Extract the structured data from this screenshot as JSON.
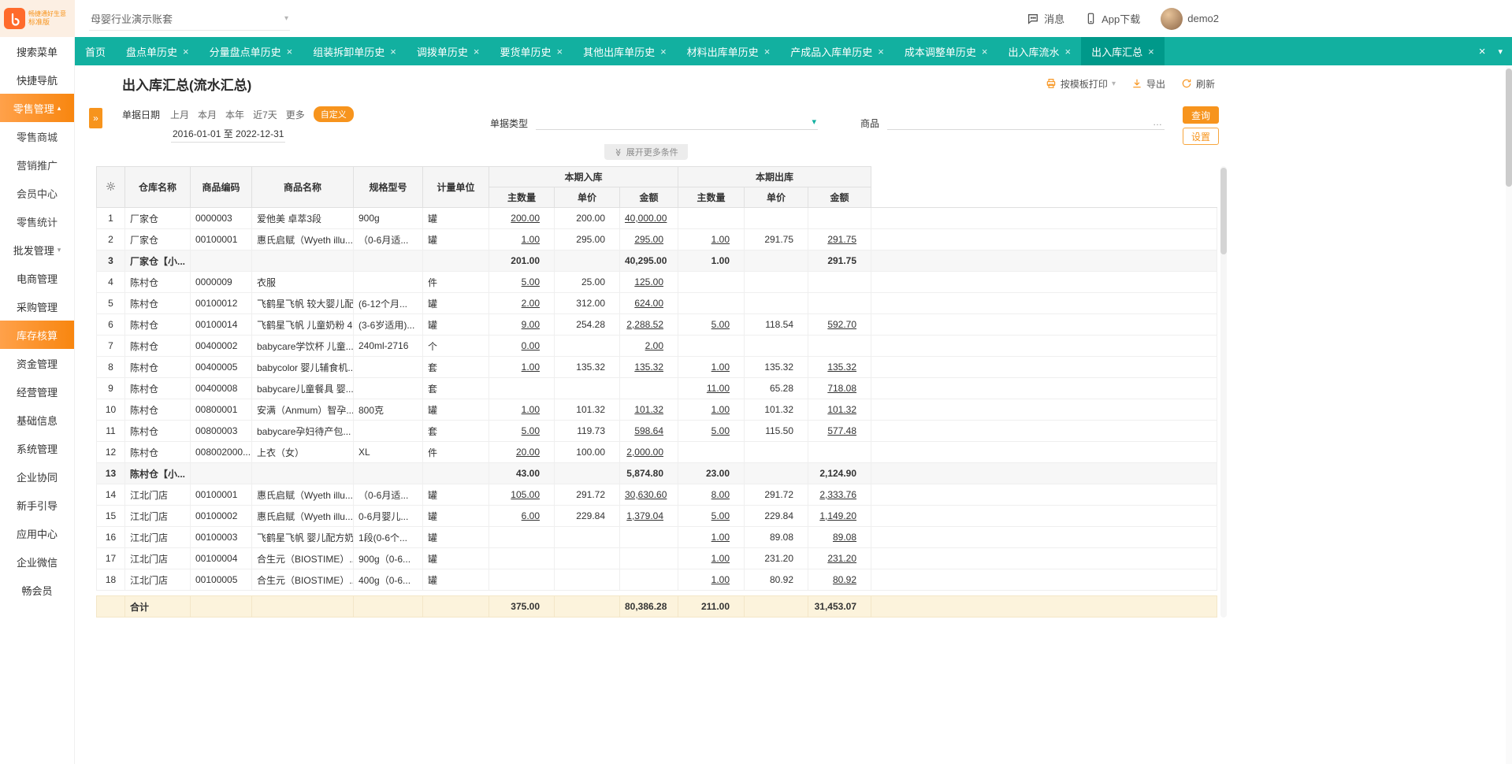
{
  "colors": {
    "teal": "#12b0a0",
    "teal_active_tab": "#00998a",
    "orange": "#f7941d",
    "logo_orange": "#ff6a2b",
    "total_row_bg": "#fcf3dc"
  },
  "icons": {
    "close": "×",
    "caret_down": "▾",
    "caret_up": "▴",
    "expand": "»",
    "double_chevron": "≫",
    "ellipsis": "…"
  },
  "topbar": {
    "logo_title": "畅捷通好生意",
    "logo_subtitle": "标准版",
    "account": "母婴行业演示账套",
    "messages_label": "消息",
    "app_download_label": "App下载",
    "username": "demo2"
  },
  "sidebar": {
    "items": [
      {
        "label": "搜索菜单",
        "type": "plain"
      },
      {
        "label": "快捷导航",
        "type": "plain"
      },
      {
        "label": "零售管理",
        "type": "group-open"
      },
      {
        "label": "零售商城",
        "type": "child"
      },
      {
        "label": "营销推广",
        "type": "child"
      },
      {
        "label": "会员中心",
        "type": "child"
      },
      {
        "label": "零售统计",
        "type": "child"
      },
      {
        "label": "批发管理",
        "type": "group-closed"
      },
      {
        "label": "电商管理",
        "type": "plain"
      },
      {
        "label": "采购管理",
        "type": "plain"
      },
      {
        "label": "库存核算",
        "type": "active"
      },
      {
        "label": "资金管理",
        "type": "plain"
      },
      {
        "label": "经营管理",
        "type": "plain"
      },
      {
        "label": "基础信息",
        "type": "plain"
      },
      {
        "label": "系统管理",
        "type": "plain"
      },
      {
        "label": "企业协同",
        "type": "plain"
      },
      {
        "label": "新手引导",
        "type": "plain"
      },
      {
        "label": "应用中心",
        "type": "plain"
      },
      {
        "label": "企业微信",
        "type": "plain"
      },
      {
        "label": "畅会员",
        "type": "plain"
      }
    ]
  },
  "tabs": [
    {
      "label": "首页",
      "closable": false,
      "active": false
    },
    {
      "label": "盘点单历史",
      "closable": true,
      "active": false
    },
    {
      "label": "分量盘点单历史",
      "closable": true,
      "active": false
    },
    {
      "label": "组装拆卸单历史",
      "closable": true,
      "active": false
    },
    {
      "label": "调拨单历史",
      "closable": true,
      "active": false
    },
    {
      "label": "要货单历史",
      "closable": true,
      "active": false
    },
    {
      "label": "其他出库单历史",
      "closable": true,
      "active": false
    },
    {
      "label": "材料出库单历史",
      "closable": true,
      "active": false
    },
    {
      "label": "产成品入库单历史",
      "closable": true,
      "active": false
    },
    {
      "label": "成本调整单历史",
      "closable": true,
      "active": false
    },
    {
      "label": "出入库流水",
      "closable": true,
      "active": false
    },
    {
      "label": "出入库汇总",
      "closable": true,
      "active": true
    }
  ],
  "page": {
    "title": "出入库汇总(流水汇总)",
    "actions": {
      "print": "按模板打印",
      "export": "导出",
      "refresh": "刷新"
    }
  },
  "filters": {
    "date_label": "单据日期",
    "date_quick": [
      "上月",
      "本月",
      "本年",
      "近7天",
      "更多"
    ],
    "custom_badge": "自定义",
    "date_range": "2016-01-01 至 2022-12-31",
    "doc_type_label": "单据类型",
    "product_label": "商品",
    "search_button": "查询",
    "settings_button": "设置",
    "expand_more": "展开更多条件"
  },
  "table": {
    "headers": {
      "warehouse": "仓库名称",
      "code": "商品编码",
      "name": "商品名称",
      "spec": "规格型号",
      "unit": "计量单位",
      "in_group": "本期入库",
      "out_group": "本期出库",
      "qty": "主数量",
      "price": "单价",
      "amount": "金额"
    },
    "rows": [
      {
        "type": "data",
        "idx": "1",
        "warehouse": "厂家仓",
        "code": "0000003",
        "name": "爱他美 卓萃3段",
        "spec": "900g",
        "unit": "罐",
        "in_qty": "200.00",
        "in_price": "200.00",
        "in_amount": "40,000.00",
        "out_qty": "",
        "out_price": "",
        "out_amount": ""
      },
      {
        "type": "data",
        "idx": "2",
        "warehouse": "厂家仓",
        "code": "00100001",
        "name": "惠氏启赋（Wyeth illu...",
        "spec": "（0-6月适...",
        "unit": "罐",
        "in_qty": "1.00",
        "in_price": "295.00",
        "in_amount": "295.00",
        "out_qty": "1.00",
        "out_price": "291.75",
        "out_amount": "291.75"
      },
      {
        "type": "subtotal",
        "idx": "3",
        "warehouse": "厂家仓【小...",
        "code": "",
        "name": "",
        "spec": "",
        "unit": "",
        "in_qty": "201.00",
        "in_price": "",
        "in_amount": "40,295.00",
        "out_qty": "1.00",
        "out_price": "",
        "out_amount": "291.75"
      },
      {
        "type": "data",
        "idx": "4",
        "warehouse": "陈村仓",
        "code": "0000009",
        "name": "衣服",
        "spec": "",
        "unit": "件",
        "in_qty": "5.00",
        "in_price": "25.00",
        "in_amount": "125.00",
        "out_qty": "",
        "out_price": "",
        "out_amount": ""
      },
      {
        "type": "data",
        "idx": "5",
        "warehouse": "陈村仓",
        "code": "00100012",
        "name": "飞鹤星飞帆 较大婴儿配...",
        "spec": "(6-12个月...",
        "unit": "罐",
        "in_qty": "2.00",
        "in_price": "312.00",
        "in_amount": "624.00",
        "out_qty": "",
        "out_price": "",
        "out_amount": ""
      },
      {
        "type": "data",
        "idx": "6",
        "warehouse": "陈村仓",
        "code": "00100014",
        "name": "飞鹤星飞帆 儿童奶粉 4...",
        "spec": "(3-6岁适用)...",
        "unit": "罐",
        "in_qty": "9.00",
        "in_price": "254.28",
        "in_amount": "2,288.52",
        "out_qty": "5.00",
        "out_price": "118.54",
        "out_amount": "592.70"
      },
      {
        "type": "data",
        "idx": "7",
        "warehouse": "陈村仓",
        "code": "00400002",
        "name": "babycare学饮杯 儿童...",
        "spec": "240ml-2716",
        "unit": "个",
        "in_qty": "0.00",
        "in_price": "",
        "in_amount": "2.00",
        "out_qty": "",
        "out_price": "",
        "out_amount": ""
      },
      {
        "type": "data",
        "idx": "8",
        "warehouse": "陈村仓",
        "code": "00400005",
        "name": "babycolor 婴儿辅食机...",
        "spec": "",
        "unit": "套",
        "in_qty": "1.00",
        "in_price": "135.32",
        "in_amount": "135.32",
        "out_qty": "1.00",
        "out_price": "135.32",
        "out_amount": "135.32"
      },
      {
        "type": "data",
        "idx": "9",
        "warehouse": "陈村仓",
        "code": "00400008",
        "name": "babycare儿童餐具 婴...",
        "spec": "",
        "unit": "套",
        "in_qty": "",
        "in_price": "",
        "in_amount": "",
        "out_qty": "11.00",
        "out_price": "65.28",
        "out_amount": "718.08"
      },
      {
        "type": "data",
        "idx": "10",
        "warehouse": "陈村仓",
        "code": "00800001",
        "name": "安满（Anmum）智孕...",
        "spec": "800克",
        "unit": "罐",
        "in_qty": "1.00",
        "in_price": "101.32",
        "in_amount": "101.32",
        "out_qty": "1.00",
        "out_price": "101.32",
        "out_amount": "101.32"
      },
      {
        "type": "data",
        "idx": "11",
        "warehouse": "陈村仓",
        "code": "00800003",
        "name": "babycare孕妇待产包...",
        "spec": "",
        "unit": "套",
        "in_qty": "5.00",
        "in_price": "119.73",
        "in_amount": "598.64",
        "out_qty": "5.00",
        "out_price": "115.50",
        "out_amount": "577.48"
      },
      {
        "type": "data",
        "idx": "12",
        "warehouse": "陈村仓",
        "code": "008002000...",
        "name": "上衣（女）",
        "spec": "XL",
        "unit": "件",
        "in_qty": "20.00",
        "in_price": "100.00",
        "in_amount": "2,000.00",
        "out_qty": "",
        "out_price": "",
        "out_amount": ""
      },
      {
        "type": "subtotal",
        "idx": "13",
        "warehouse": "陈村仓【小...",
        "code": "",
        "name": "",
        "spec": "",
        "unit": "",
        "in_qty": "43.00",
        "in_price": "",
        "in_amount": "5,874.80",
        "out_qty": "23.00",
        "out_price": "",
        "out_amount": "2,124.90"
      },
      {
        "type": "data",
        "idx": "14",
        "warehouse": "江北门店",
        "code": "00100001",
        "name": "惠氏启赋（Wyeth illu...",
        "spec": "（0-6月适...",
        "unit": "罐",
        "in_qty": "105.00",
        "in_price": "291.72",
        "in_amount": "30,630.60",
        "out_qty": "8.00",
        "out_price": "291.72",
        "out_amount": "2,333.76"
      },
      {
        "type": "data",
        "idx": "15",
        "warehouse": "江北门店",
        "code": "00100002",
        "name": "惠氏启赋（Wyeth illu...",
        "spec": "0-6月婴儿...",
        "unit": "罐",
        "in_qty": "6.00",
        "in_price": "229.84",
        "in_amount": "1,379.04",
        "out_qty": "5.00",
        "out_price": "229.84",
        "out_amount": "1,149.20"
      },
      {
        "type": "data",
        "idx": "16",
        "warehouse": "江北门店",
        "code": "00100003",
        "name": "飞鹤星飞帆 婴儿配方奶...",
        "spec": "1段(0-6个...",
        "unit": "罐",
        "in_qty": "",
        "in_price": "",
        "in_amount": "",
        "out_qty": "1.00",
        "out_price": "89.08",
        "out_amount": "89.08"
      },
      {
        "type": "data",
        "idx": "17",
        "warehouse": "江北门店",
        "code": "00100004",
        "name": "合生元（BIOSTIME）...",
        "spec": "900g（0-6...",
        "unit": "罐",
        "in_qty": "",
        "in_price": "",
        "in_amount": "",
        "out_qty": "1.00",
        "out_price": "231.20",
        "out_amount": "231.20"
      },
      {
        "type": "data",
        "idx": "18",
        "warehouse": "江北门店",
        "code": "00100005",
        "name": "合生元（BIOSTIME）...",
        "spec": "400g（0-6...",
        "unit": "罐",
        "in_qty": "",
        "in_price": "",
        "in_amount": "",
        "out_qty": "1.00",
        "out_price": "80.92",
        "out_amount": "80.92"
      }
    ],
    "total": {
      "label": "合计",
      "in_qty": "375.00",
      "in_amount": "80,386.28",
      "out_qty": "211.00",
      "out_amount": "31,453.07"
    }
  }
}
